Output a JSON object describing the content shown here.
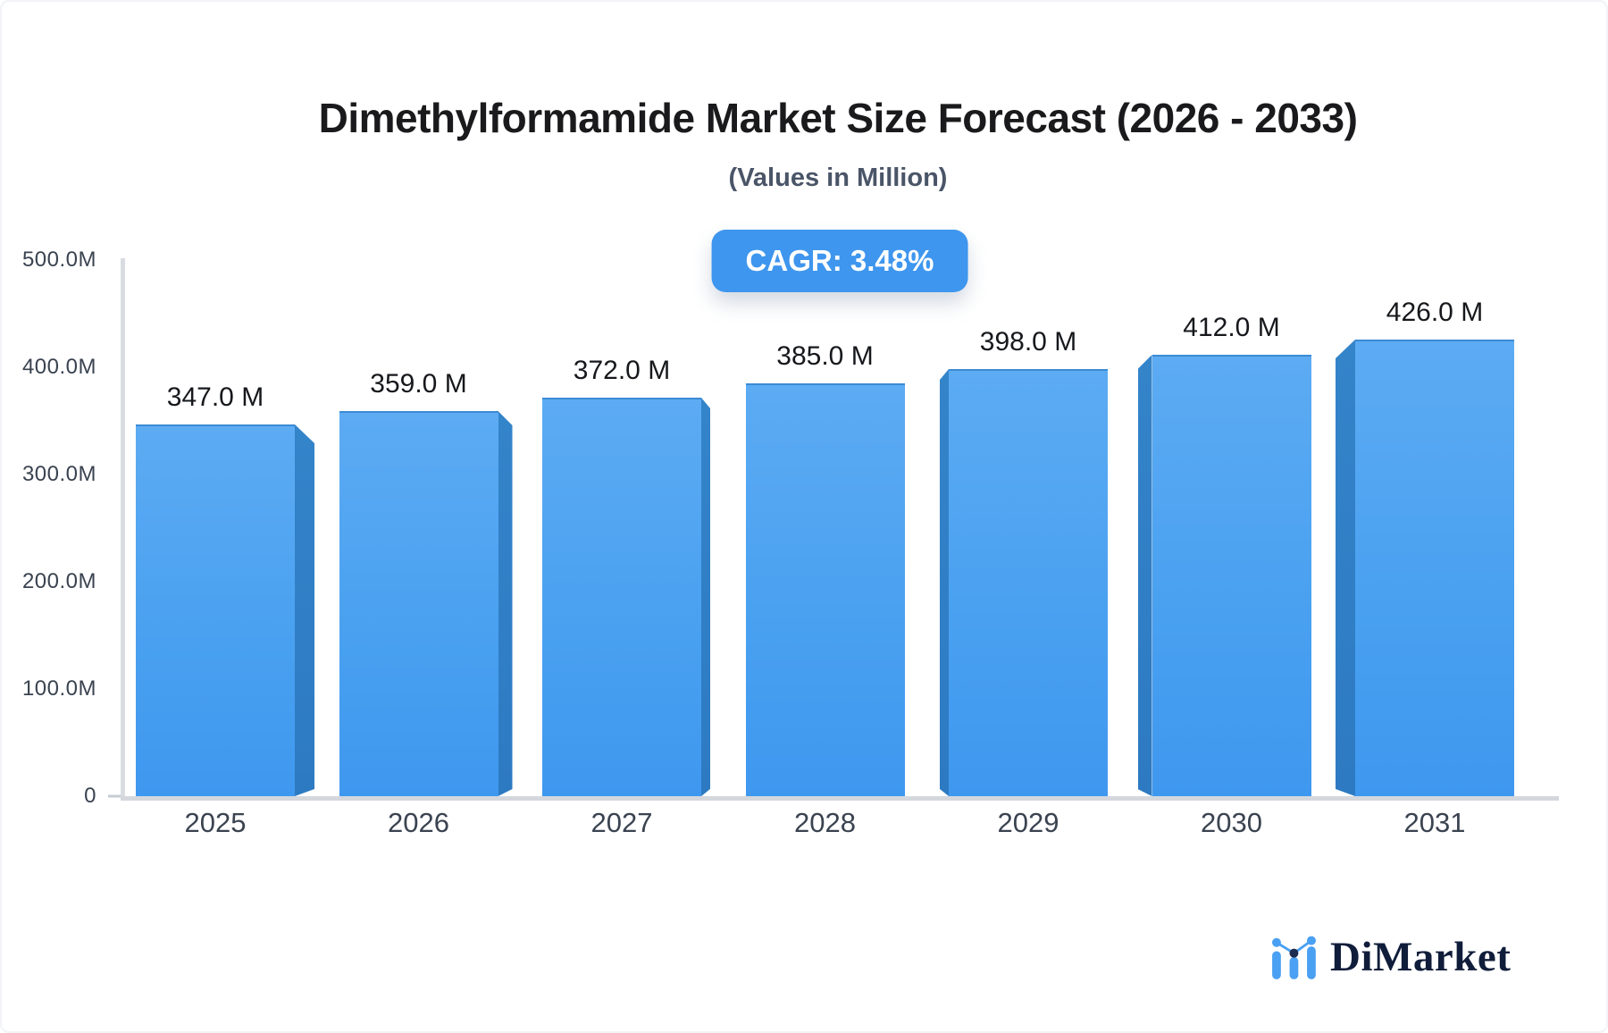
{
  "header": {
    "title": "Dimethylformamide Market Size Forecast (2026 - 2033)",
    "subtitle": "(Values in Million)",
    "badge": "CAGR: 3.48%"
  },
  "chart_data": {
    "type": "bar",
    "title": "Dimethylformamide Market Size Forecast (2026 - 2033)",
    "subtitle": "(Values in Million)",
    "categories": [
      "2025",
      "2026",
      "2027",
      "2028",
      "2029",
      "2030",
      "2031"
    ],
    "values": [
      347,
      359,
      372,
      385,
      398,
      412,
      426
    ],
    "value_labels": [
      "347.0 M",
      "359.0 M",
      "372.0 M",
      "385.0 M",
      "398.0 M",
      "412.0 M",
      "426.0 M"
    ],
    "unit": "Million",
    "cagr_label": "CAGR: 3.48%",
    "y_ticks": [
      "500.0M",
      "400.0M",
      "300.0M",
      "200.0M",
      "100.0M",
      "0"
    ],
    "ylim": [
      0,
      500
    ],
    "grid": false,
    "legend": "none",
    "bar_style": "3d-column"
  },
  "colors": {
    "bar_face_top": "#5cabf3",
    "bar_face_bottom": "#3f98ef",
    "bar_side": "#2d7ac2",
    "badge_bg": "#3e96ee",
    "badge_text": "#ffffff",
    "axis_line": "#d8dce1",
    "title_text": "#1a1a1c",
    "subtitle_text": "#4a5568",
    "tick_text": "#3a4350",
    "logo_text": "#101d3a",
    "logo_blue": "#4aa0f2",
    "logo_navy": "#1d2b4f"
  },
  "logo": {
    "text": "DiMarket",
    "icon": "mini-bar-chart-icon"
  }
}
